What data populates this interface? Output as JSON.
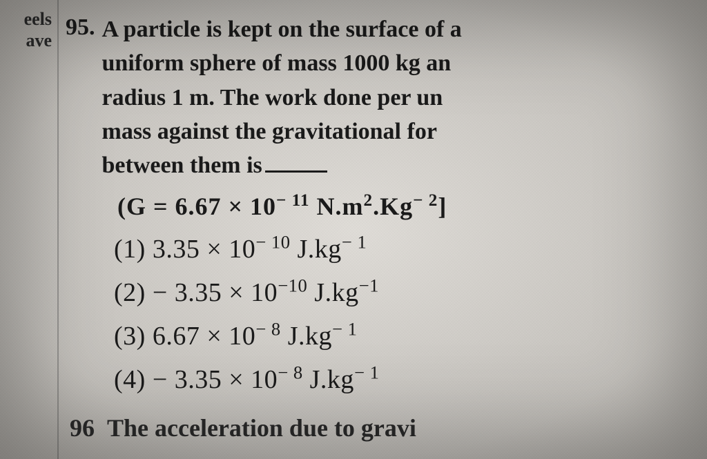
{
  "margin": {
    "line1": "eels",
    "line2": "ave"
  },
  "question": {
    "number": "95.",
    "text_line1": "A particle is kept on the surface of a",
    "text_line2": "uniform sphere of mass 1000 kg an",
    "text_line3": "radius 1 m. The work done per un",
    "text_line4": "mass against the gravitational for",
    "text_line5": "between them is"
  },
  "formula": {
    "prefix": "(G = 6.67 × 10",
    "exp1": "− 11",
    "mid": " N.m",
    "exp2": "2",
    "mid2": ".Kg",
    "exp3": "− 2",
    "suffix": "]"
  },
  "options": {
    "opt1_num": "(1)",
    "opt1_val": " 3.35 × 10",
    "opt1_exp": "− 10",
    "opt1_unit": " J.kg",
    "opt1_unitexp": "− 1",
    "opt2_num": "(2)",
    "opt2_val": " − 3.35 × 10",
    "opt2_exp": "−10",
    "opt2_unit": " J.kg",
    "opt2_unitexp": "−1",
    "opt3_num": "(3)",
    "opt3_val": " 6.67 × 10",
    "opt3_exp": "− 8",
    "opt3_unit": " J.kg",
    "opt3_unitexp": "− 1",
    "opt4_num": "(4)",
    "opt4_val": " − 3.35 × 10",
    "opt4_exp": "− 8",
    "opt4_unit": " J.kg",
    "opt4_unitexp": "− 1"
  },
  "next_question": {
    "number": "96",
    "text": "The acceleration due to gravi"
  }
}
